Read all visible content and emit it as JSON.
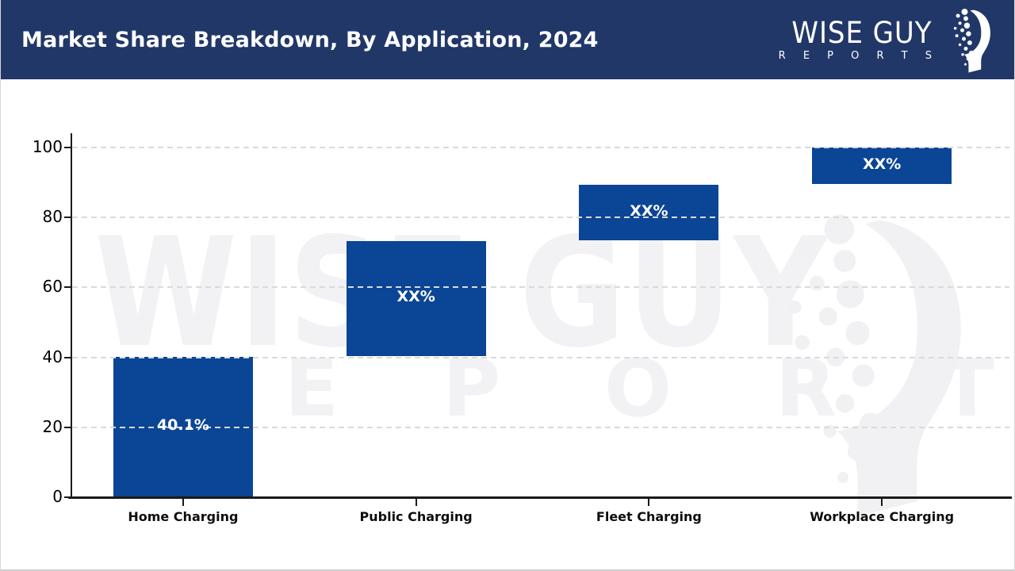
{
  "header": {
    "title": "Market Share Breakdown, By Application, 2024",
    "logo": {
      "line1": "WISE GUY",
      "line2": "R E P O R T S"
    }
  },
  "watermark": {
    "line1": "WISE GUY",
    "line2": "R E P O R T S"
  },
  "chart_data": {
    "type": "bar",
    "subtype": "waterfall",
    "title": "Market Share Breakdown, By Application, 2024",
    "unit": "%",
    "categories": [
      "Home Charging",
      "Public Charging",
      "Fleet Charging",
      "Workplace Charging"
    ],
    "series": [
      {
        "name": "Market share",
        "segments": [
          {
            "category": "Home Charging",
            "start": 0,
            "end": 40.1,
            "value": 40.1,
            "label": "40.1%"
          },
          {
            "category": "Public Charging",
            "start": 40.1,
            "end": 73.3,
            "value": 33.2,
            "label": "XX%"
          },
          {
            "category": "Fleet Charging",
            "start": 73.3,
            "end": 89.3,
            "value": 16.0,
            "label": "XX%"
          },
          {
            "category": "Workplace Charging",
            "start": 89.3,
            "end": 100.0,
            "value": 10.7,
            "label": "XX%"
          }
        ]
      }
    ],
    "yticks": [
      0,
      20,
      40,
      60,
      80,
      100
    ],
    "ylim": [
      0,
      105
    ],
    "grid": {
      "horizontal": true,
      "style": "dashed",
      "color": "#dadada",
      "above_bars": true
    },
    "legend": "none",
    "colors": {
      "bar": "#0b4596",
      "bar_label": "#ffffff",
      "axis": "#1a1a1a",
      "tick_label": "#000000",
      "header_bg": "#213768",
      "watermark": "#f2f2f4"
    }
  }
}
